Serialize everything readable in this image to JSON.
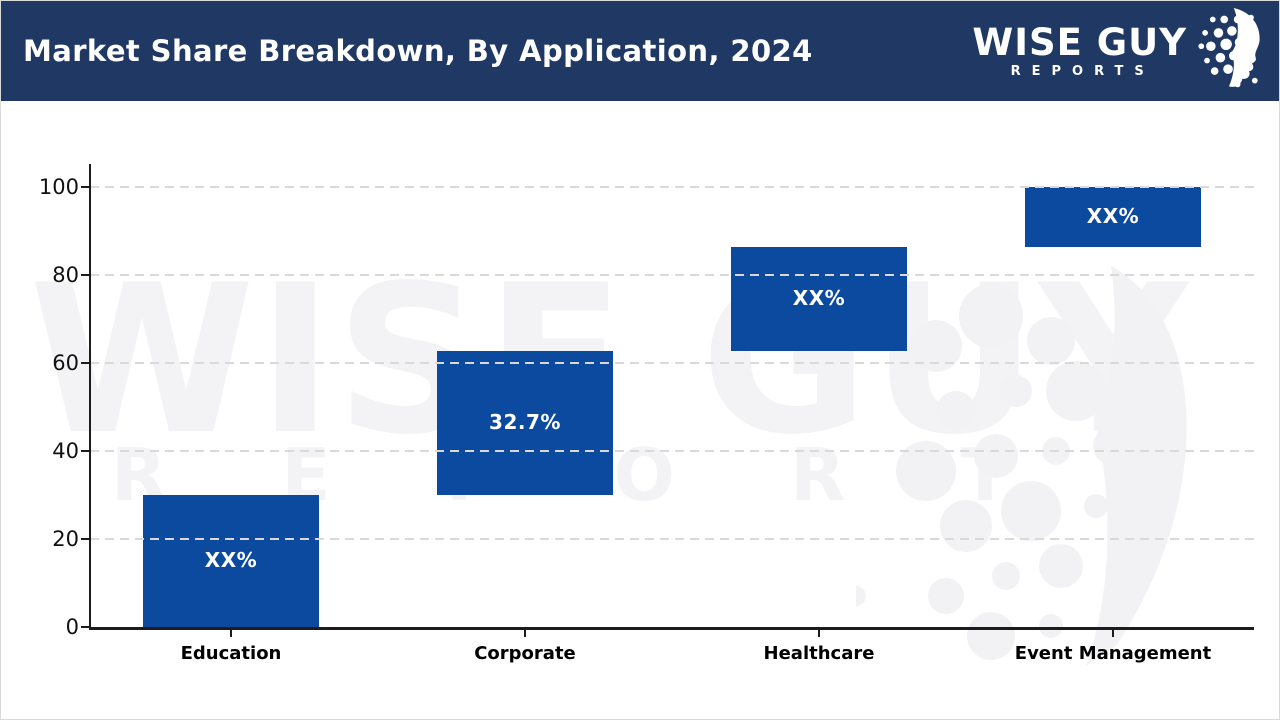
{
  "header": {
    "title": "Market Share Breakdown, By Application, 2024",
    "logo": {
      "line1": "WISE GUY",
      "line2": "REPORTS"
    },
    "bg_color": "#203864"
  },
  "watermark": {
    "line1": "WISE GUY",
    "line2": "R E P O R T S"
  },
  "chart_data": {
    "type": "bar",
    "subtype": "floating-waterfall",
    "title": "Market Share Breakdown, By Application, 2024",
    "categories": [
      "Education",
      "Corporate",
      "Healthcare",
      "Event Management"
    ],
    "segments": [
      [
        0,
        30
      ],
      [
        30,
        62.7
      ],
      [
        62.7,
        86.3
      ],
      [
        86.3,
        100
      ]
    ],
    "bar_labels": [
      "XX%",
      "32.7%",
      "XX%",
      "XX%"
    ],
    "approx_values": [
      30,
      32.7,
      23.6,
      13.7
    ],
    "yticks": [
      0,
      20,
      40,
      60,
      80,
      100
    ],
    "ylim": [
      0,
      100
    ],
    "xlabel": "",
    "ylabel": "",
    "grid": "horizontal-dashed",
    "legend": "none",
    "bar_color": "#0c4aa0",
    "bar_label_color": "#ffffff",
    "axis_color": "#1c1c1c",
    "grid_color": "#d9d9d9"
  }
}
